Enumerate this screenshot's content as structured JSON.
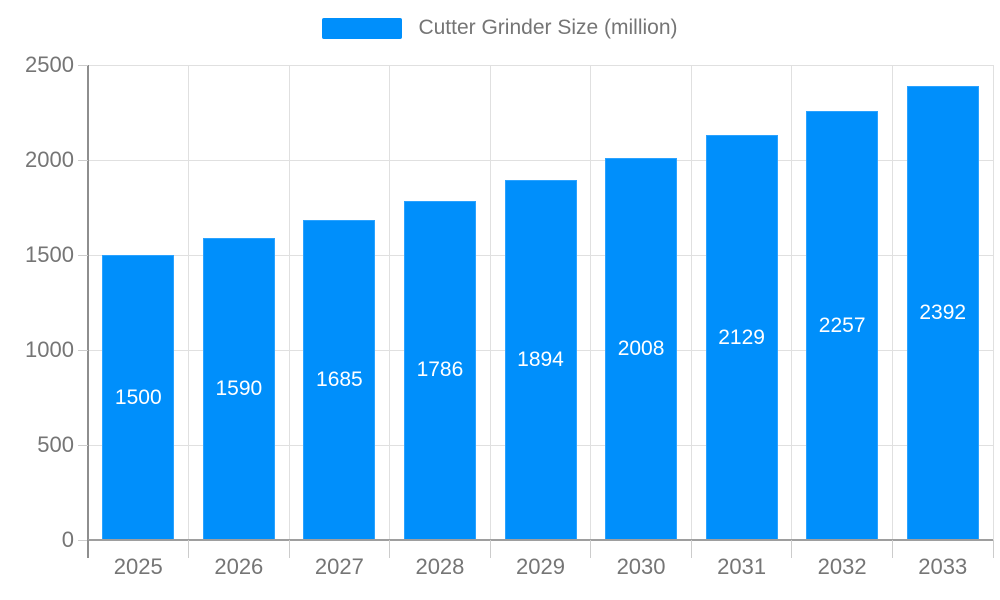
{
  "legend": {
    "label": "Cutter Grinder Size (million)"
  },
  "colors": {
    "bar": "#008FFB",
    "bar_edge": "#2aa2ff",
    "grid": "#e0e0e0",
    "axis": "#8e8e8e",
    "tick": "#cccccc",
    "label_text": "#757575",
    "value_text": "#ffffff"
  },
  "chart_data": {
    "type": "bar",
    "title": "Cutter Grinder Size (million)",
    "categories": [
      "2025",
      "2026",
      "2027",
      "2028",
      "2029",
      "2030",
      "2031",
      "2032",
      "2033"
    ],
    "values": [
      1500,
      1590,
      1685,
      1786,
      1894,
      2008,
      2129,
      2257,
      2392
    ],
    "series_name": "Cutter Grinder Size (million)",
    "xlabel": "",
    "ylabel": "",
    "ylim": [
      0,
      2500
    ],
    "yticks": [
      0,
      500,
      1000,
      1500,
      2000,
      2500
    ],
    "grid": true,
    "legend_position": "top",
    "value_label_position": "inside-center"
  }
}
